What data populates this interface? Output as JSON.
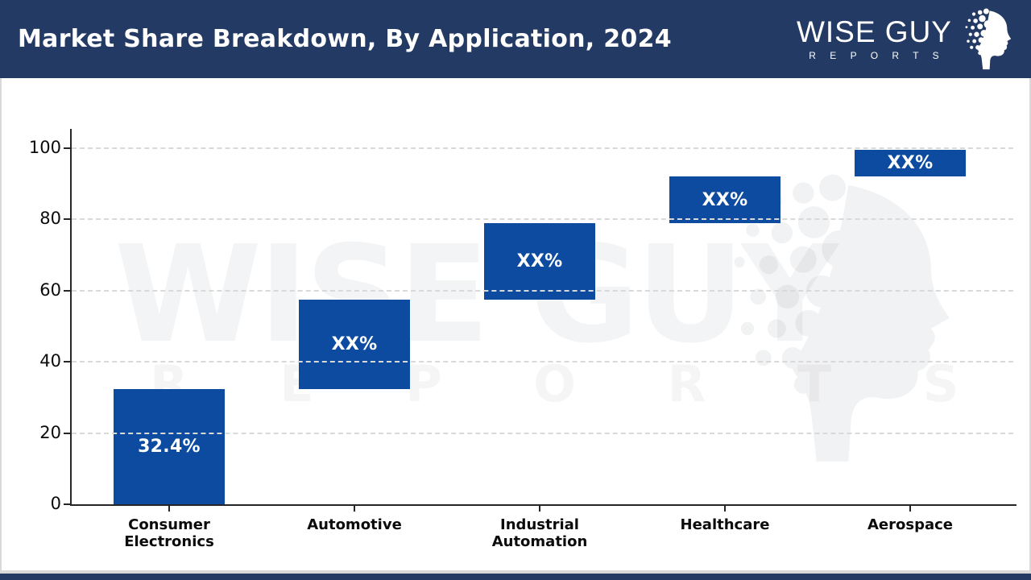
{
  "header": {
    "title": "Market Share Breakdown, By Application, 2024",
    "logo_line1": "WISE GUY",
    "logo_line2": "R E P O R T S"
  },
  "watermark": {
    "line1": "WISE GUY",
    "line2": "R E P O R T S"
  },
  "colors": {
    "header_bg": "#233A64",
    "bar": "#0C4BA0",
    "grid": "#D9D9D9",
    "axis": "#262626",
    "bar_label_text": "#FFFFFF",
    "tick_label_text": "#0B0B0B",
    "footer_accent": "#233A64"
  },
  "chart_data": {
    "type": "bar",
    "subtype": "waterfall-breakdown",
    "title": "Market Share Breakdown, By Application, 2024",
    "categories": [
      [
        "Consumer",
        "Electronics"
      ],
      [
        "Automotive"
      ],
      [
        "Industrial",
        "Automation"
      ],
      [
        "Healthcare"
      ],
      [
        "Aerospace"
      ]
    ],
    "segments": [
      {
        "category": "Consumer Electronics",
        "label": "32.4%",
        "start": 0,
        "end": 32.4
      },
      {
        "category": "Automotive",
        "label": "XX%",
        "start": 32.4,
        "end": 57.4
      },
      {
        "category": "Industrial Automation",
        "label": "XX%",
        "start": 57.4,
        "end": 79.0
      },
      {
        "category": "Healthcare",
        "label": "XX%",
        "start": 79.0,
        "end": 92.0
      },
      {
        "category": "Aerospace",
        "label": "XX%",
        "start": 92.0,
        "end": 99.5
      }
    ],
    "yticks": [
      0,
      20,
      40,
      60,
      80,
      100
    ],
    "ylim": [
      0,
      106
    ],
    "xlabel": "",
    "ylabel": "",
    "grid": "horizontal-dashed",
    "legend": "none"
  }
}
